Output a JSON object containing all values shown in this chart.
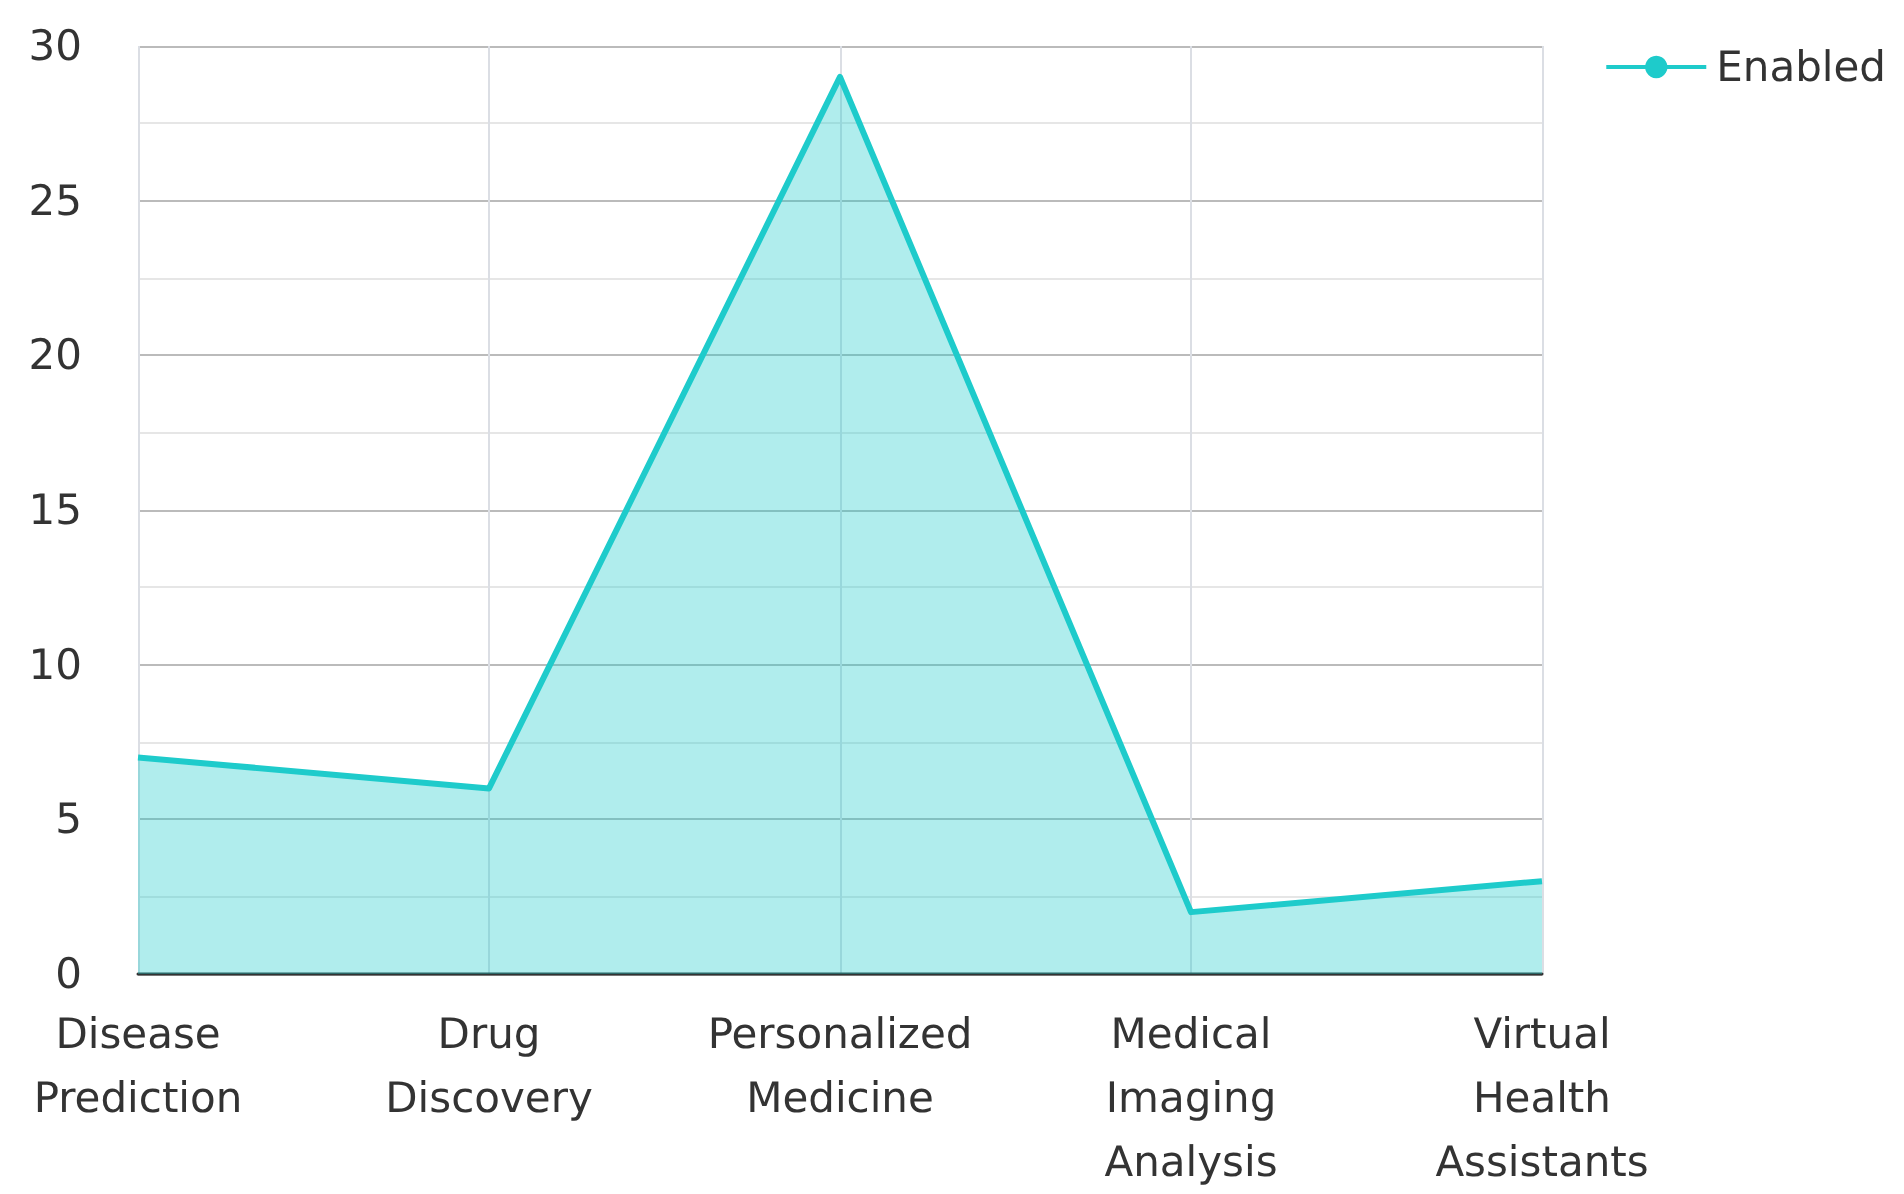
{
  "chart_data": {
    "type": "area",
    "categories": [
      "Disease Prediction",
      "Drug Discovery",
      "Personalized Medicine",
      "Medical Imaging Analysis",
      "Virtual Health Assistants"
    ],
    "series": [
      {
        "name": "Enabled",
        "color": "#1ecbcb",
        "values": [
          7,
          6,
          29,
          2,
          3
        ]
      }
    ],
    "ylim": [
      0,
      30
    ],
    "yticks": [
      0,
      5,
      10,
      15,
      20,
      25,
      30
    ],
    "grid": true,
    "legend": "top right",
    "marker": "none"
  }
}
